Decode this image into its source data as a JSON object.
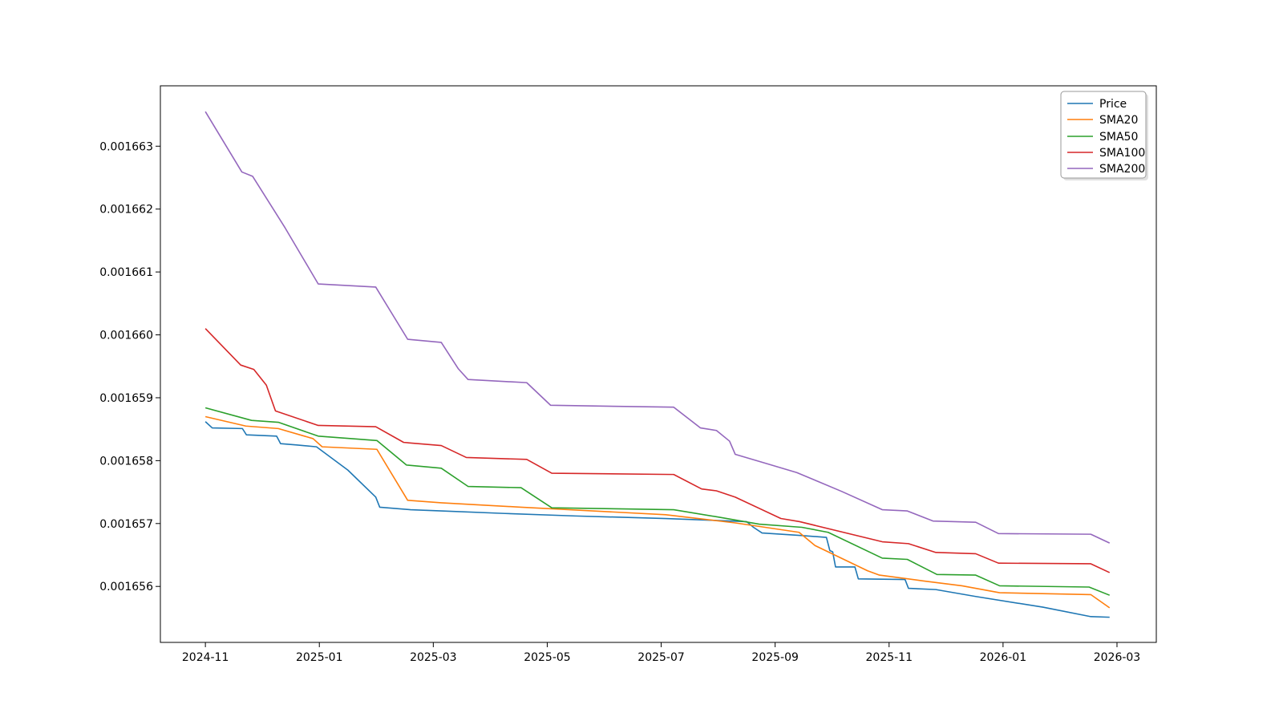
{
  "chart_data": {
    "type": "line",
    "title": "",
    "xlabel": "",
    "ylabel": "",
    "grid": false,
    "legend_position": "upper right",
    "x_axis_note": "months since 2024-11",
    "xlim_months": [
      -0.79,
      16.69
    ],
    "ylim": [
      0.00165511,
      0.00166396
    ],
    "x_ticks": [
      {
        "month": 0,
        "label": "2024-11"
      },
      {
        "month": 2,
        "label": "2025-01"
      },
      {
        "month": 4,
        "label": "2025-03"
      },
      {
        "month": 6,
        "label": "2025-05"
      },
      {
        "month": 8,
        "label": "2025-07"
      },
      {
        "month": 10,
        "label": "2025-09"
      },
      {
        "month": 12,
        "label": "2025-11"
      },
      {
        "month": 14,
        "label": "2026-01"
      },
      {
        "month": 16,
        "label": "2026-03"
      }
    ],
    "y_ticks": [
      {
        "value": 0.001656,
        "label": "0.001656"
      },
      {
        "value": 0.001657,
        "label": "0.001657"
      },
      {
        "value": 0.001658,
        "label": "0.001658"
      },
      {
        "value": 0.001659,
        "label": "0.001659"
      },
      {
        "value": 0.00166,
        "label": "0.001660"
      },
      {
        "value": 0.001661,
        "label": "0.001661"
      },
      {
        "value": 0.001662,
        "label": "0.001662"
      },
      {
        "value": 0.001663,
        "label": "0.001663"
      }
    ],
    "series": [
      {
        "name": "Price",
        "color": "#1f77b4",
        "points": [
          [
            0,
            0.00165862
          ],
          [
            0.12,
            0.00165852
          ],
          [
            0.65,
            0.00165851
          ],
          [
            0.72,
            0.00165841
          ],
          [
            1.25,
            0.00165839
          ],
          [
            1.32,
            0.00165827
          ],
          [
            1.6,
            0.00165825
          ],
          [
            1.95,
            0.00165822
          ],
          [
            2.5,
            0.00165785
          ],
          [
            2.99,
            0.00165742
          ],
          [
            3.06,
            0.00165726
          ],
          [
            3.6,
            0.00165722
          ],
          [
            4.14,
            0.0016572
          ],
          [
            5.26,
            0.00165716
          ],
          [
            6.5,
            0.00165712
          ],
          [
            8.08,
            0.00165708
          ],
          [
            9.5,
            0.00165703
          ],
          [
            9.62,
            0.00165694
          ],
          [
            9.77,
            0.00165685
          ],
          [
            10.45,
            0.00165681
          ],
          [
            10.9,
            0.00165678
          ],
          [
            10.96,
            0.00165657
          ],
          [
            11.01,
            0.00165655
          ],
          [
            11.06,
            0.00165631
          ],
          [
            11.4,
            0.00165631
          ],
          [
            11.46,
            0.00165612
          ],
          [
            12.28,
            0.00165611
          ],
          [
            12.34,
            0.00165597
          ],
          [
            12.82,
            0.00165595
          ],
          [
            13.52,
            0.00165584
          ],
          [
            14.7,
            0.00165567
          ],
          [
            15.54,
            0.00165552
          ],
          [
            15.87,
            0.00165551
          ]
        ]
      },
      {
        "name": "SMA20",
        "color": "#ff7f0e",
        "points": [
          [
            0,
            0.0016587
          ],
          [
            0.71,
            0.00165855
          ],
          [
            1.28,
            0.00165851
          ],
          [
            1.89,
            0.00165835
          ],
          [
            2.05,
            0.00165822
          ],
          [
            3.01,
            0.00165818
          ],
          [
            3.55,
            0.00165737
          ],
          [
            4.14,
            0.00165733
          ],
          [
            5.54,
            0.00165726
          ],
          [
            8.08,
            0.00165714
          ],
          [
            9.3,
            0.00165701
          ],
          [
            10.42,
            0.00165686
          ],
          [
            10.7,
            0.00165665
          ],
          [
            11.62,
            0.00165625
          ],
          [
            11.83,
            0.00165618
          ],
          [
            12.58,
            0.00165609
          ],
          [
            13.28,
            0.00165601
          ],
          [
            13.94,
            0.0016559
          ],
          [
            15.54,
            0.00165587
          ],
          [
            15.87,
            0.00165566
          ]
        ]
      },
      {
        "name": "SMA50",
        "color": "#2ca02c",
        "points": [
          [
            0,
            0.00165884
          ],
          [
            0.81,
            0.00165864
          ],
          [
            1.28,
            0.00165861
          ],
          [
            1.98,
            0.00165839
          ],
          [
            3.01,
            0.00165832
          ],
          [
            3.53,
            0.00165793
          ],
          [
            4.14,
            0.00165788
          ],
          [
            4.61,
            0.00165759
          ],
          [
            5.54,
            0.00165757
          ],
          [
            6.08,
            0.00165725
          ],
          [
            8.22,
            0.00165722
          ],
          [
            9.02,
            0.0016571
          ],
          [
            9.72,
            0.00165699
          ],
          [
            10.47,
            0.00165694
          ],
          [
            10.93,
            0.00165686
          ],
          [
            11.88,
            0.00165645
          ],
          [
            12.32,
            0.00165643
          ],
          [
            12.84,
            0.00165619
          ],
          [
            13.52,
            0.00165618
          ],
          [
            13.94,
            0.00165601
          ],
          [
            15.51,
            0.00165599
          ],
          [
            15.87,
            0.00165586
          ]
        ]
      },
      {
        "name": "SMA100",
        "color": "#d62728",
        "points": [
          [
            0,
            0.0016601
          ],
          [
            0.62,
            0.00165952
          ],
          [
            0.85,
            0.00165945
          ],
          [
            1.07,
            0.0016592
          ],
          [
            1.23,
            0.00165879
          ],
          [
            1.98,
            0.00165856
          ],
          [
            2.99,
            0.00165854
          ],
          [
            3.48,
            0.00165829
          ],
          [
            4.14,
            0.00165824
          ],
          [
            4.58,
            0.00165805
          ],
          [
            5.64,
            0.00165802
          ],
          [
            6.08,
            0.0016578
          ],
          [
            8.22,
            0.00165778
          ],
          [
            8.71,
            0.00165755
          ],
          [
            8.97,
            0.00165752
          ],
          [
            9.3,
            0.00165742
          ],
          [
            10.1,
            0.00165708
          ],
          [
            10.43,
            0.00165703
          ],
          [
            11.88,
            0.00165671
          ],
          [
            12.34,
            0.00165668
          ],
          [
            12.82,
            0.00165654
          ],
          [
            13.52,
            0.00165652
          ],
          [
            13.92,
            0.00165637
          ],
          [
            15.54,
            0.00165636
          ],
          [
            15.87,
            0.00165622
          ]
        ]
      },
      {
        "name": "SMA200",
        "color": "#9467bd",
        "points": [
          [
            0,
            0.00166355
          ],
          [
            0.64,
            0.00166259
          ],
          [
            0.83,
            0.00166252
          ],
          [
            1.4,
            0.0016617
          ],
          [
            1.98,
            0.00166081
          ],
          [
            2.99,
            0.00166076
          ],
          [
            3.55,
            0.00165993
          ],
          [
            4.14,
            0.00165988
          ],
          [
            4.44,
            0.00165946
          ],
          [
            4.61,
            0.00165929
          ],
          [
            5.64,
            0.00165924
          ],
          [
            6.06,
            0.00165888
          ],
          [
            8.22,
            0.00165885
          ],
          [
            8.69,
            0.00165852
          ],
          [
            8.97,
            0.00165848
          ],
          [
            9.2,
            0.00165831
          ],
          [
            9.3,
            0.0016581
          ],
          [
            9.86,
            0.00165795
          ],
          [
            10.38,
            0.00165781
          ],
          [
            10.75,
            0.00165767
          ],
          [
            11.17,
            0.00165751
          ],
          [
            11.88,
            0.00165722
          ],
          [
            12.32,
            0.0016572
          ],
          [
            12.77,
            0.00165704
          ],
          [
            13.52,
            0.00165702
          ],
          [
            13.92,
            0.00165684
          ],
          [
            15.54,
            0.00165683
          ],
          [
            15.87,
            0.00165669
          ]
        ]
      }
    ]
  }
}
